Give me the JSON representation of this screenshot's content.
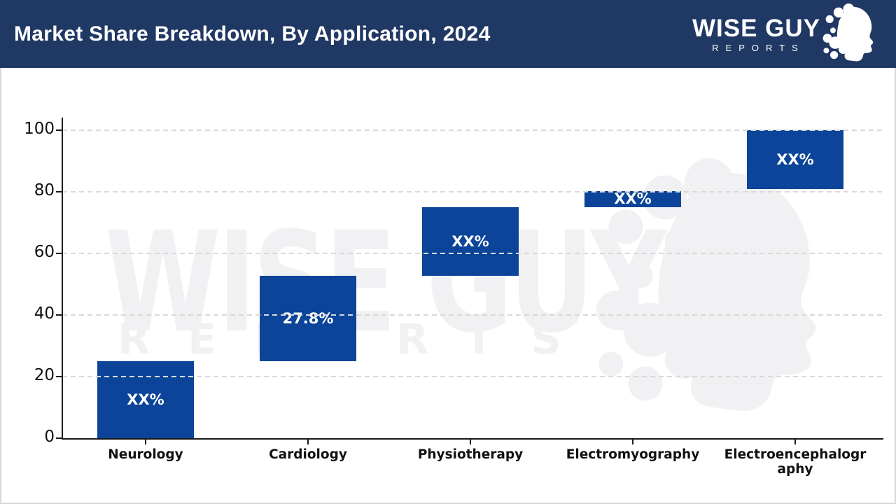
{
  "header": {
    "title": "Market Share Breakdown, By Application, 2024",
    "bg_color": "#203864",
    "brand": {
      "line1": "WISE GUY",
      "line2": "REPORTS"
    }
  },
  "watermark": {
    "line1": "WISE GUY",
    "line2": "REPORTS"
  },
  "chart_data": {
    "type": "bar",
    "subtype": "waterfall-floating-bars",
    "title": "Market Share Breakdown, By Application, 2024",
    "categories": [
      "Neurology",
      "Cardiology",
      "Physiotherapy",
      "Electromyography",
      "Electroencephalography"
    ],
    "bars": [
      {
        "category": "Neurology",
        "start": 0,
        "end": 25,
        "label": "XX%"
      },
      {
        "category": "Cardiology",
        "start": 25,
        "end": 52.8,
        "label": "27.8%"
      },
      {
        "category": "Physiotherapy",
        "start": 52.8,
        "end": 75,
        "label": "XX%"
      },
      {
        "category": "Electromyography",
        "start": 75,
        "end": 80.3,
        "label": "XX%"
      },
      {
        "category": "Electroencephalography",
        "start": 81,
        "end": 100,
        "label": "XX%"
      }
    ],
    "values": [
      25,
      27.8,
      22.2,
      5.3,
      19
    ],
    "xlabel": "",
    "ylabel": "",
    "ylim": [
      0,
      100
    ],
    "yticks": [
      0,
      20,
      40,
      60,
      80,
      100
    ],
    "grid": "horizontal-dashed",
    "grid_color": "#d9d9d9",
    "legend": "none",
    "bar_color": "#0b4499",
    "bar_label_color": "#ffffff",
    "axis_color": "#1a1a1a"
  }
}
